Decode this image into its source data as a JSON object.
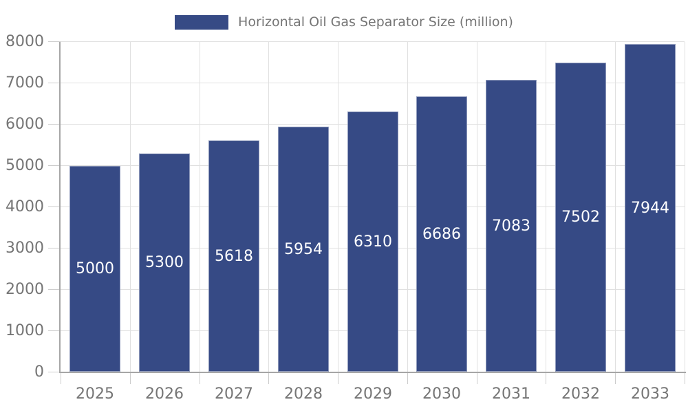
{
  "legend": {
    "label": "Horizontal Oil Gas Separator Size (million)"
  },
  "chart_data": {
    "type": "bar",
    "title": "Horizontal Oil Gas Separator Size (million)",
    "series_name": "Horizontal Oil Gas Separator Size (million)",
    "categories": [
      "2025",
      "2026",
      "2027",
      "2028",
      "2029",
      "2030",
      "2031",
      "2032",
      "2033"
    ],
    "values": [
      5000,
      5300,
      5618,
      5954,
      6310,
      6686,
      7083,
      7502,
      7944
    ],
    "bar_labels": [
      "5000",
      "5300",
      "5618",
      "5954",
      "6310",
      "6686",
      "7083",
      "7502",
      "7944"
    ],
    "xlabel": "",
    "ylabel": "",
    "ylim": [
      0,
      8000
    ],
    "ytick_step": 1000,
    "ytick_labels": [
      "0",
      "1000",
      "2000",
      "3000",
      "4000",
      "5000",
      "6000",
      "7000",
      "8000"
    ],
    "grid": true,
    "legend_position": "top-center",
    "bar_labels_visible": true,
    "colors": {
      "bar": "#364a85",
      "bar_label_text": "#ffffff",
      "axis_line": "#a6a6a6",
      "grid_line": "#e0e0e0",
      "tick_line": "#cccccc",
      "tick_text": "#757575",
      "legend_text": "#757575",
      "background": "#ffffff"
    }
  }
}
